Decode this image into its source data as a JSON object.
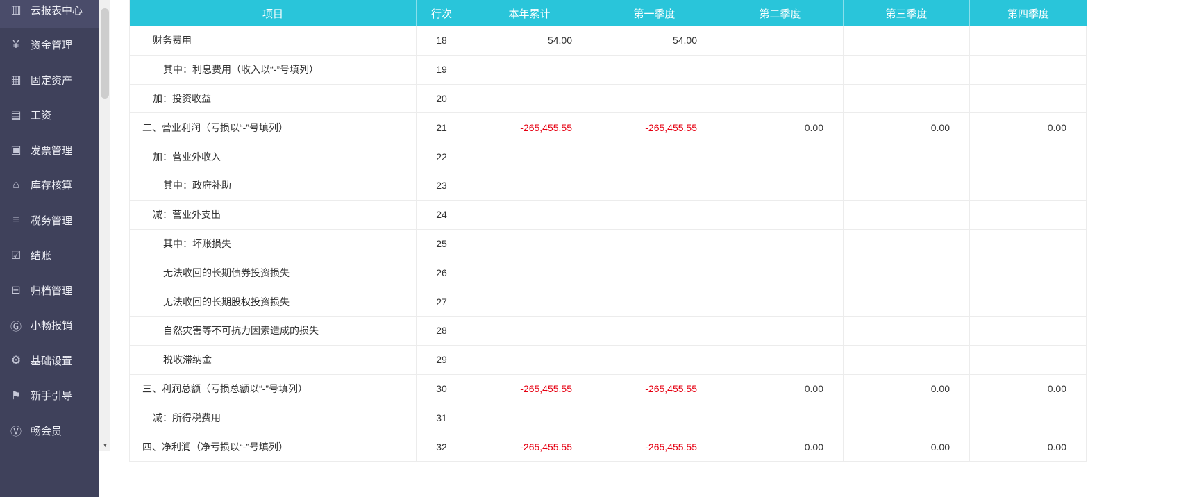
{
  "colors": {
    "sidebar_background": "#3f415b",
    "sidebar_text": "#ecedf4",
    "header_background": "#29c5da",
    "header_text": "#ffffff",
    "cell_text": "#333333",
    "negative_value": "#e60012",
    "grid_border": "#ececec"
  },
  "sidebar": {
    "items": [
      {
        "key": "cloud-report-center",
        "label": "云报表中心",
        "icon": "bar-chart-icon",
        "glyph": "▥"
      },
      {
        "key": "fund-management",
        "label": "资金管理",
        "icon": "money-icon",
        "glyph": "¥"
      },
      {
        "key": "fixed-assets",
        "label": "固定资产",
        "icon": "building-icon",
        "glyph": "▦"
      },
      {
        "key": "payroll",
        "label": "工资",
        "icon": "payroll-icon",
        "glyph": "▤"
      },
      {
        "key": "invoice-management",
        "label": "发票管理",
        "icon": "invoice-icon",
        "glyph": "▣"
      },
      {
        "key": "inventory-accounting",
        "label": "库存核算",
        "icon": "warehouse-icon",
        "glyph": "⌂"
      },
      {
        "key": "tax-management",
        "label": "税务管理",
        "icon": "tax-icon",
        "glyph": "≡"
      },
      {
        "key": "closing",
        "label": "结账",
        "icon": "closing-check-icon",
        "glyph": "☑"
      },
      {
        "key": "archive-management",
        "label": "归档管理",
        "icon": "archive-icon",
        "glyph": "⊟"
      },
      {
        "key": "xiaochang-expense",
        "label": "小畅报销",
        "icon": "reimburse-icon",
        "glyph": "Ⓖ"
      },
      {
        "key": "basic-settings",
        "label": "基础设置",
        "icon": "settings-gear-icon",
        "glyph": "⚙"
      },
      {
        "key": "beginner-guide",
        "label": "新手引导",
        "icon": "guide-flag-icon",
        "glyph": "⚑"
      },
      {
        "key": "member",
        "label": "畅会员",
        "icon": "member-v-icon",
        "glyph": "Ⓥ"
      }
    ]
  },
  "scrollbar": {
    "down_glyph": "▼"
  },
  "table": {
    "headers": [
      "项目",
      "行次",
      "本年累计",
      "第一季度",
      "第二季度",
      "第三季度",
      "第四季度"
    ],
    "rows": [
      {
        "item": "财务费用",
        "indent": 2,
        "line": "18",
        "values": [
          "54.00",
          "54.00",
          "",
          "",
          ""
        ]
      },
      {
        "item": "其中：利息费用（收入以“-”号填列）",
        "indent": 3,
        "line": "19",
        "values": [
          "",
          "",
          "",
          "",
          ""
        ]
      },
      {
        "item": "加：投资收益",
        "indent": 2,
        "line": "20",
        "values": [
          "",
          "",
          "",
          "",
          ""
        ]
      },
      {
        "item": "二、营业利润（亏损以“-”号填列）",
        "indent": 1,
        "line": "21",
        "values": [
          "-265,455.55",
          "-265,455.55",
          "0.00",
          "0.00",
          "0.00"
        ]
      },
      {
        "item": "加：营业外收入",
        "indent": 2,
        "line": "22",
        "values": [
          "",
          "",
          "",
          "",
          ""
        ]
      },
      {
        "item": "其中：政府补助",
        "indent": 3,
        "line": "23",
        "values": [
          "",
          "",
          "",
          "",
          ""
        ]
      },
      {
        "item": "减：营业外支出",
        "indent": 2,
        "line": "24",
        "values": [
          "",
          "",
          "",
          "",
          ""
        ]
      },
      {
        "item": "其中：坏账损失",
        "indent": 3,
        "line": "25",
        "values": [
          "",
          "",
          "",
          "",
          ""
        ]
      },
      {
        "item": "无法收回的长期债券投资损失",
        "indent": 3,
        "line": "26",
        "values": [
          "",
          "",
          "",
          "",
          ""
        ]
      },
      {
        "item": "无法收回的长期股权投资损失",
        "indent": 3,
        "line": "27",
        "values": [
          "",
          "",
          "",
          "",
          ""
        ]
      },
      {
        "item": "自然灾害等不可抗力因素造成的损失",
        "indent": 3,
        "line": "28",
        "values": [
          "",
          "",
          "",
          "",
          ""
        ]
      },
      {
        "item": "税收滞纳金",
        "indent": 3,
        "line": "29",
        "values": [
          "",
          "",
          "",
          "",
          ""
        ]
      },
      {
        "item": "三、利润总额（亏损总额以“-”号填列）",
        "indent": 1,
        "line": "30",
        "values": [
          "-265,455.55",
          "-265,455.55",
          "0.00",
          "0.00",
          "0.00"
        ]
      },
      {
        "item": "减：所得税费用",
        "indent": 2,
        "line": "31",
        "values": [
          "",
          "",
          "",
          "",
          ""
        ]
      },
      {
        "item": "四、净利润（净亏损以“-”号填列）",
        "indent": 1,
        "line": "32",
        "values": [
          "-265,455.55",
          "-265,455.55",
          "0.00",
          "0.00",
          "0.00"
        ]
      }
    ]
  }
}
